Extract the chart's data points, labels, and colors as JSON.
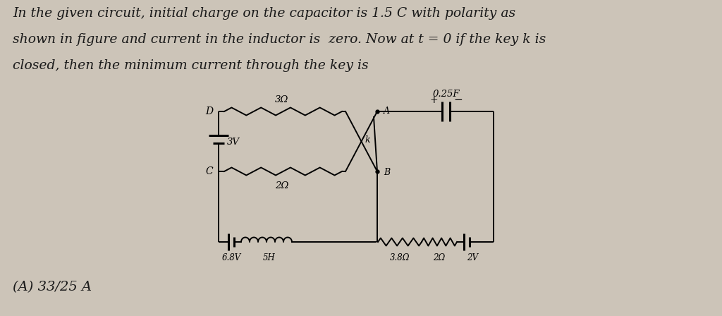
{
  "background_color": "#ccc4b8",
  "text_color": "#1a1a1a",
  "title_line1": "In the given circuit, initial charge on the capacitor is 1.5 C with polarity as",
  "title_line2": "shown in figure and current in the inductor is  zero. Now at t = 0 if the key k is",
  "title_line3": "closed, then the minimum current through the key is",
  "answer_text": "(A) 33/25 A",
  "title_fontsize": 13.5,
  "answer_fontsize": 14,
  "fig_width": 10.24,
  "fig_height": 4.48,
  "xl": 3.1,
  "xr": 7.0,
  "yt": 2.9,
  "ym": 2.05,
  "yb": 1.05,
  "xmid": 4.9
}
